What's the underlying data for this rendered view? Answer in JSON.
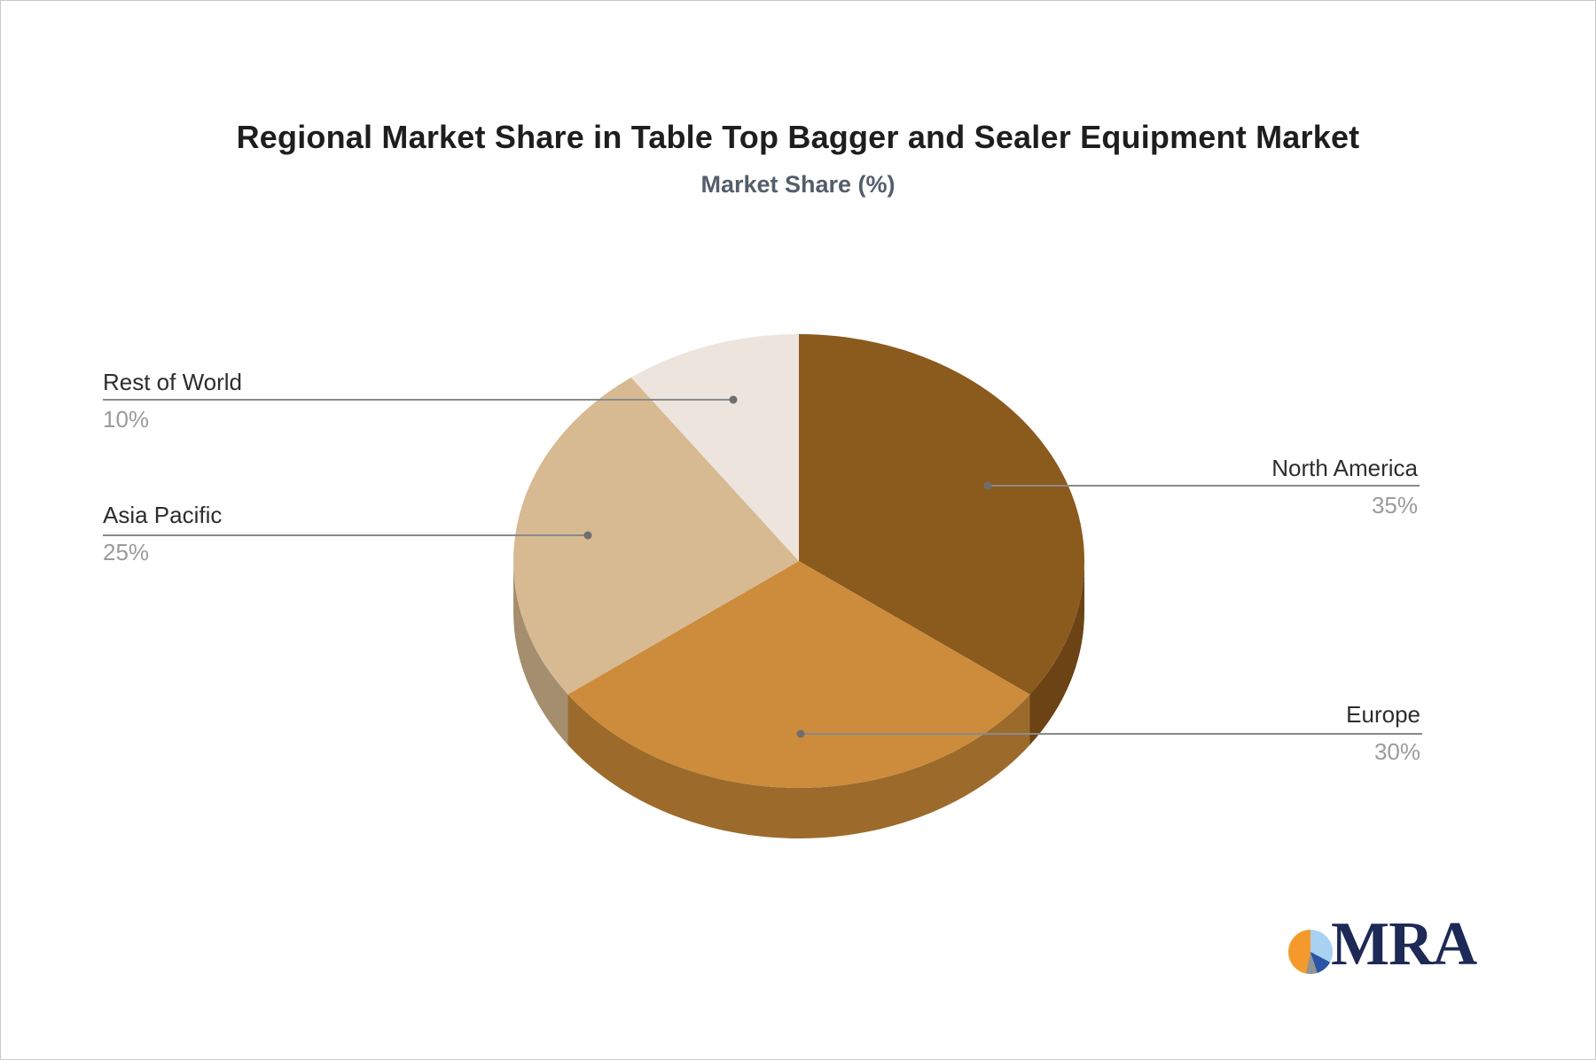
{
  "title": "Regional Market Share in Table Top Bagger and Sealer Equipment Market",
  "subtitle": "Market Share (%)",
  "chart_data": {
    "type": "pie",
    "style": "3d-extruded",
    "title": "Regional Market Share in Table Top Bagger and Sealer Equipment Market",
    "subtitle": "Market Share (%)",
    "unit": "%",
    "direction": "clockwise",
    "start_angle_deg": 0,
    "legend": "none",
    "label_style": "callout-lines-with-dots",
    "categories": [
      "North America",
      "Europe",
      "Asia Pacific",
      "Rest of World"
    ],
    "values": [
      35,
      30,
      25,
      10
    ],
    "slices": [
      {
        "label": "North America",
        "value": 35,
        "pct_label": "35%",
        "color": "#8B5A1D",
        "side_color": "#6B4315",
        "callout_side": "right"
      },
      {
        "label": "Europe",
        "value": 30,
        "pct_label": "30%",
        "color": "#CC8C3C",
        "side_color": "#9C6B2B",
        "callout_side": "right"
      },
      {
        "label": "Asia Pacific",
        "value": 25,
        "pct_label": "25%",
        "color": "#D7BA92",
        "side_color": "#A58E6E",
        "callout_side": "left"
      },
      {
        "label": "Rest of World",
        "value": 10,
        "pct_label": "10%",
        "color": "#EDE4DD",
        "side_color": "#B5ACA5",
        "callout_side": "left"
      }
    ]
  },
  "callout_colors": {
    "line": "#8a8a8a",
    "dot": "#6e6e6e",
    "name_text": "#2d2d2d",
    "pct_text": "#9b9b9b"
  },
  "logo": {
    "text": "MRA",
    "text_color": "#1d2956",
    "pie_colors": {
      "light_blue": "#A9D2F2",
      "dark_blue": "#2A55A4",
      "gray": "#949494",
      "orange": "#F49A2D"
    }
  }
}
